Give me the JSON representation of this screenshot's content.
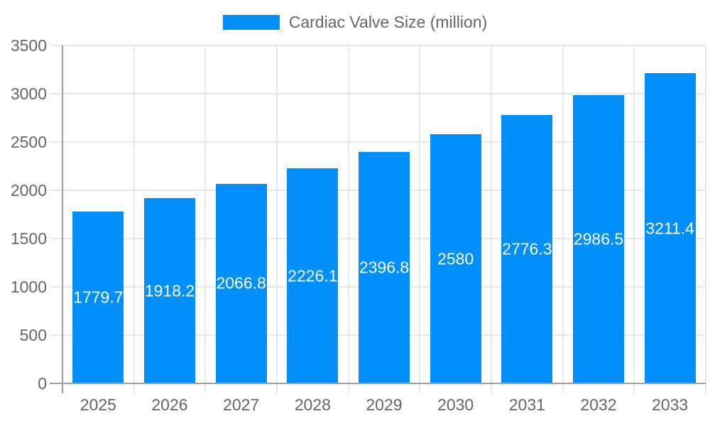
{
  "legend": {
    "label": "Cardiac Valve Size (million)",
    "swatch_color": "#008FFB"
  },
  "chart_data": {
    "type": "bar",
    "title": "Cardiac Valve Size (million)",
    "categories": [
      "2025",
      "2026",
      "2027",
      "2028",
      "2029",
      "2030",
      "2031",
      "2032",
      "2033"
    ],
    "series": [
      {
        "name": "Cardiac Valve Size (million)",
        "values": [
          1779.7,
          1918.2,
          2066.8,
          2226.1,
          2396.8,
          2580,
          2776.3,
          2986.5,
          3211.4
        ]
      }
    ],
    "xlabel": "",
    "ylabel": "",
    "ylim": [
      0,
      3500
    ],
    "yticks": [
      0,
      500,
      1000,
      1500,
      2000,
      2500,
      3000,
      3500
    ],
    "grid": true,
    "legend_position": "top",
    "value_labels": "inside-center"
  },
  "colors": {
    "bar": "#008FFB",
    "grid": "#e7e7e7",
    "axis": "#9e9e9e",
    "text": "#666666",
    "value_label": "#ffffff"
  }
}
